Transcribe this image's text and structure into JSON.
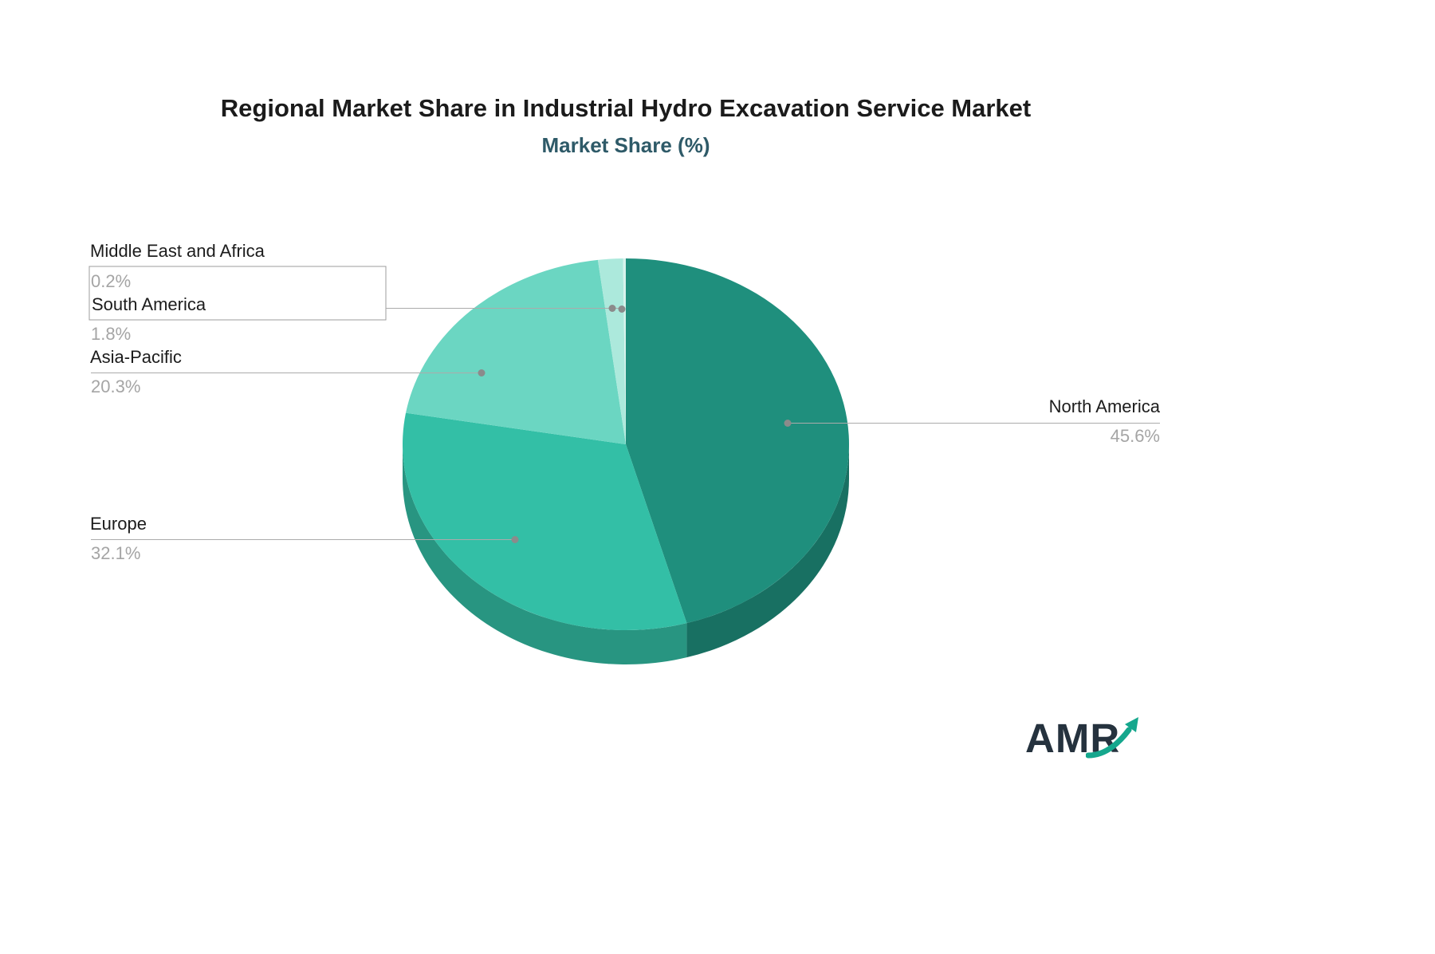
{
  "title": "Regional Market Share in Industrial Hydro Excavation Service Market",
  "subtitle": "Market Share (%)",
  "logo": {
    "text": "AMR"
  },
  "colors": {
    "title_text": "#1b1b1b",
    "subtitle_text": "#2e5a68",
    "label_text": "#1c1c1c",
    "percent_text": "#a5a5a5",
    "leader_line": "#ababab",
    "leader_dot": "#8b8b8b",
    "callout_box_border": "#9c9c9c",
    "logo_text": "#25323e",
    "logo_arrow": "#15a78d"
  },
  "chart_data": {
    "type": "pie",
    "style": "3d",
    "title": "Regional Market Share in Industrial Hydro Excavation Service Market",
    "subtitle": "Market Share (%)",
    "unit": "%",
    "start_angle_deg": -90,
    "direction": "clockwise",
    "legend_position": "none",
    "slices": [
      {
        "label": "North America",
        "value": 45.6,
        "value_label": "45.6%",
        "color": "#1f8f7d"
      },
      {
        "label": "Europe",
        "value": 32.1,
        "value_label": "32.1%",
        "color": "#33bfa6"
      },
      {
        "label": "Asia-Pacific",
        "value": 20.3,
        "value_label": "20.3%",
        "color": "#6bd6c2"
      },
      {
        "label": "South America",
        "value": 1.8,
        "value_label": "1.8%",
        "color": "#ace9dc"
      },
      {
        "label": "Middle East and Africa",
        "value": 0.2,
        "value_label": "0.2%",
        "color": "#d7f3ec"
      }
    ]
  }
}
